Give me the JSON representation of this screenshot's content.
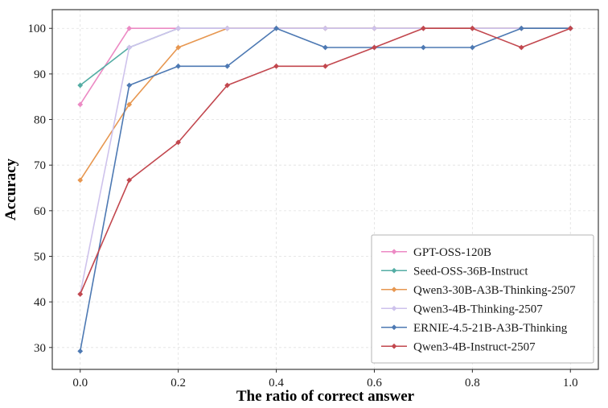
{
  "chart_data": {
    "type": "line",
    "title": "",
    "xlabel": "The ratio of correct answer",
    "ylabel": "Accuracy",
    "x": [
      0.0,
      0.1,
      0.2,
      0.3,
      0.4,
      0.5,
      0.6,
      0.7,
      0.8,
      0.9,
      1.0
    ],
    "xticks": [
      0.0,
      0.2,
      0.4,
      0.6,
      0.8,
      1.0
    ],
    "yticks": [
      30,
      40,
      50,
      60,
      70,
      80,
      90,
      100
    ],
    "xlim": [
      -0.057,
      1.057
    ],
    "ylim": [
      25.2,
      104.1
    ],
    "grid": true,
    "grid_color": "#e0e0e0",
    "spine_color": "#2b2b2b",
    "legend_position": "lower right",
    "legend_border_color": "#b5b5b5",
    "series": [
      {
        "name": "GPT-OSS-120B",
        "color": "#ec8ac4",
        "values": [
          83.3,
          100,
          100,
          100,
          100,
          100,
          100,
          100,
          100,
          100,
          100
        ]
      },
      {
        "name": "Seed-OSS-36B-Instruct",
        "color": "#54ada4",
        "values": [
          87.5,
          95.8,
          100,
          100,
          100,
          100,
          100,
          100,
          100,
          100,
          100
        ]
      },
      {
        "name": "Qwen3-30B-A3B-Thinking-2507",
        "color": "#e79750",
        "values": [
          66.7,
          83.3,
          95.8,
          100,
          100,
          100,
          100,
          100,
          100,
          100,
          100
        ]
      },
      {
        "name": "Qwen3-4B-Thinking-2507",
        "color": "#cec2ec",
        "values": [
          41.7,
          95.8,
          100,
          100,
          100,
          100,
          100,
          100,
          100,
          100,
          100
        ]
      },
      {
        "name": "ERNIE-4.5-21B-A3B-Thinking",
        "color": "#4d79b3",
        "values": [
          29.2,
          87.5,
          91.7,
          91.7,
          100,
          95.8,
          95.8,
          95.8,
          95.8,
          100,
          100
        ]
      },
      {
        "name": "Qwen3-4B-Instruct-2507",
        "color": "#c2474e",
        "values": [
          41.7,
          66.7,
          75.0,
          87.5,
          91.7,
          91.7,
          95.8,
          100,
          100,
          95.8,
          100
        ]
      }
    ]
  }
}
